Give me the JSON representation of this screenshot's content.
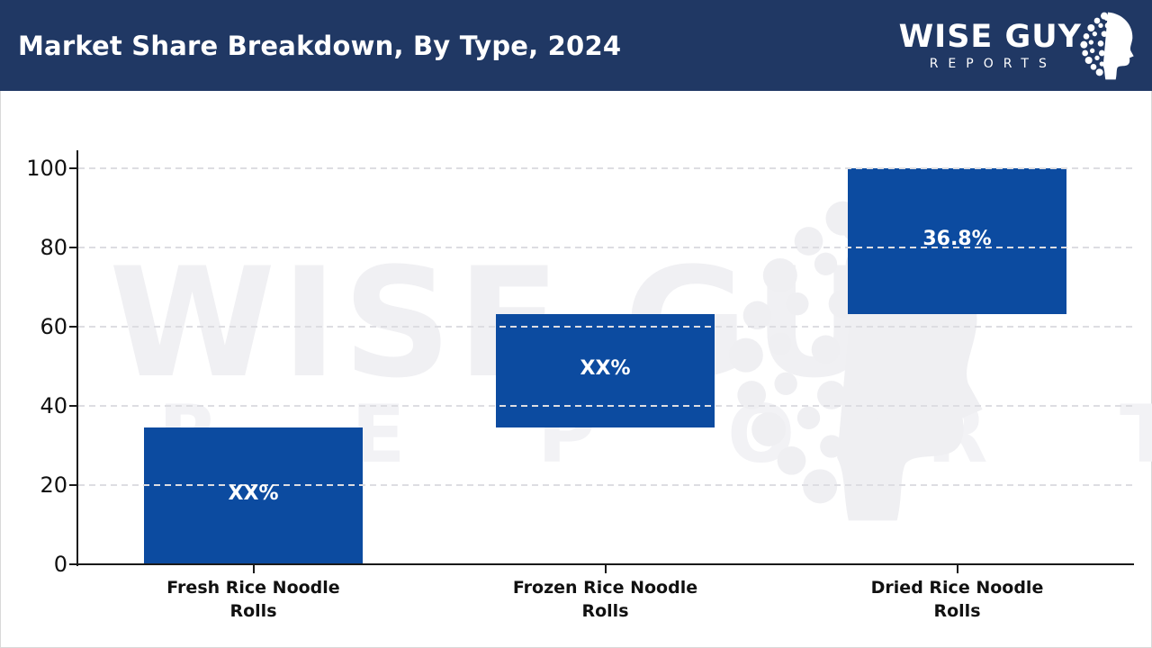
{
  "header": {
    "title": "Market Share Breakdown, By Type, 2024",
    "bg_color": "#203864",
    "logo": {
      "line1": "WISE GUY",
      "line2": "REPORTS"
    }
  },
  "watermark": {
    "line1": "WISE GUY",
    "line2": "R E P O R T S"
  },
  "chart_data": {
    "type": "bar",
    "subtype": "floating-segment-columns (segments stack to 100%)",
    "title": "Market Share Breakdown, By Type, 2024",
    "categories": [
      "Fresh Rice Noodle Rolls",
      "Frozen Rice Noodle Rolls",
      "Dried Rice Noodle Rolls"
    ],
    "bars": [
      {
        "category": "Fresh Rice Noodle Rolls",
        "start": 0,
        "end": 34.5,
        "value": 34.5,
        "label": "XX%"
      },
      {
        "category": "Frozen Rice Noodle Rolls",
        "start": 34.5,
        "end": 63.2,
        "value": 28.7,
        "label": "XX%"
      },
      {
        "category": "Dried Rice Noodle Rolls",
        "start": 63.2,
        "end": 100,
        "value": 36.8,
        "label": "36.8%"
      }
    ],
    "yticks": [
      0,
      20,
      40,
      60,
      80,
      100
    ],
    "ylim": [
      0,
      105
    ],
    "xlabel": "",
    "ylabel": "",
    "grid": "horizontal-dashed",
    "grid_color": "#dddde2",
    "bar_color": "#0c4ba0",
    "bar_label_color": "#ffffff",
    "axis_color": "#1a1a1a",
    "legend": "none"
  }
}
